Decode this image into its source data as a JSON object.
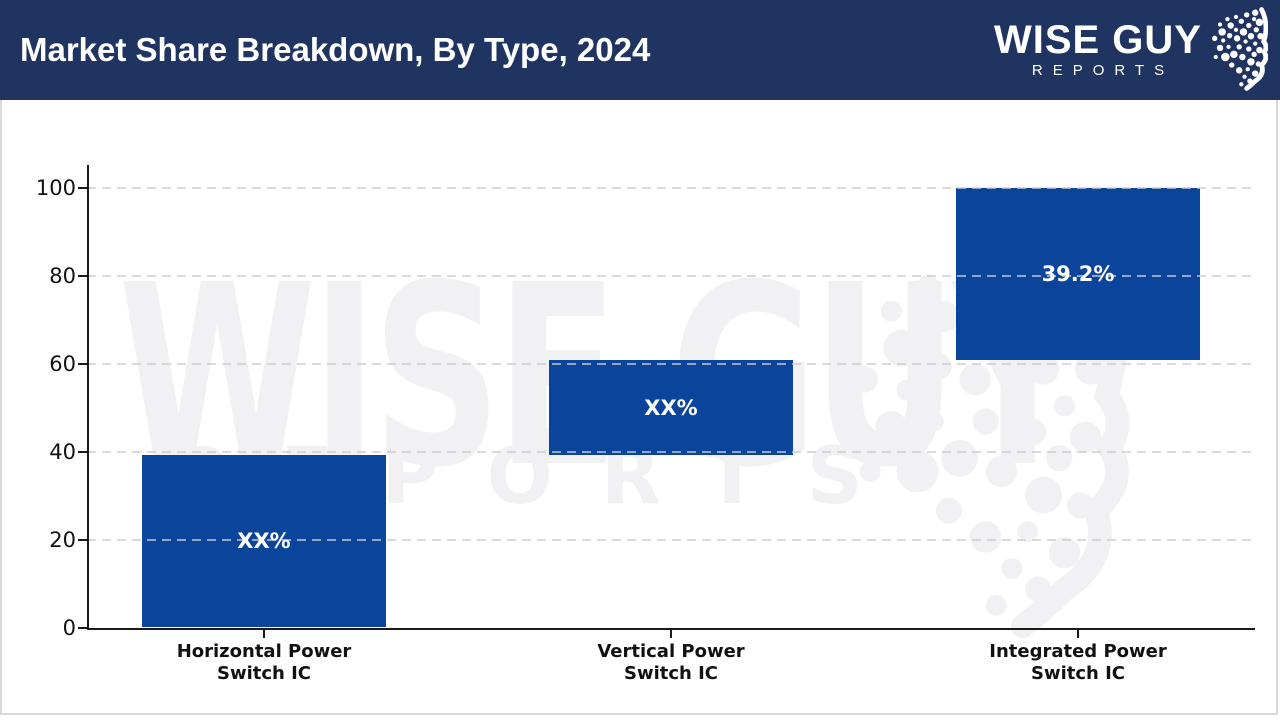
{
  "header": {
    "title": "Market Share Breakdown, By Type, 2024",
    "logo": {
      "line1": "WISE GUY",
      "line2": "REPORTS"
    }
  },
  "watermark": {
    "line1": "WISE GUY",
    "line2": "REPORTS"
  },
  "colors": {
    "header_bg": "#1f3461",
    "bar": "#0b459b",
    "axis": "#1a1a1a",
    "gridline": "#cbcbcb",
    "watermark": "#f1f1f3",
    "bar_label_text": "#ffffff",
    "title_text": "#ffffff"
  },
  "chart_data": {
    "type": "bar",
    "subtype": "waterfall-segments",
    "title": "Market Share Breakdown, By Type, 2024",
    "categories": [
      "Horizontal Power\nSwitch IC",
      "Vertical Power\nSwitch IC",
      "Integrated Power\nSwitch IC"
    ],
    "segments": [
      {
        "category": "Horizontal Power Switch IC",
        "start": 0,
        "end": 39.2,
        "label": "XX%"
      },
      {
        "category": "Vertical Power Switch IC",
        "start": 39.2,
        "end": 60.8,
        "label": "XX%"
      },
      {
        "category": "Integrated Power Switch IC",
        "start": 60.8,
        "end": 100,
        "label": "39.2%"
      }
    ],
    "xlabel": "",
    "ylabel": "",
    "ylim": [
      0,
      100
    ],
    "yticks": [
      0,
      20,
      40,
      60,
      80,
      100
    ],
    "grid": true,
    "grid_style": "dashed",
    "legend": "none"
  }
}
